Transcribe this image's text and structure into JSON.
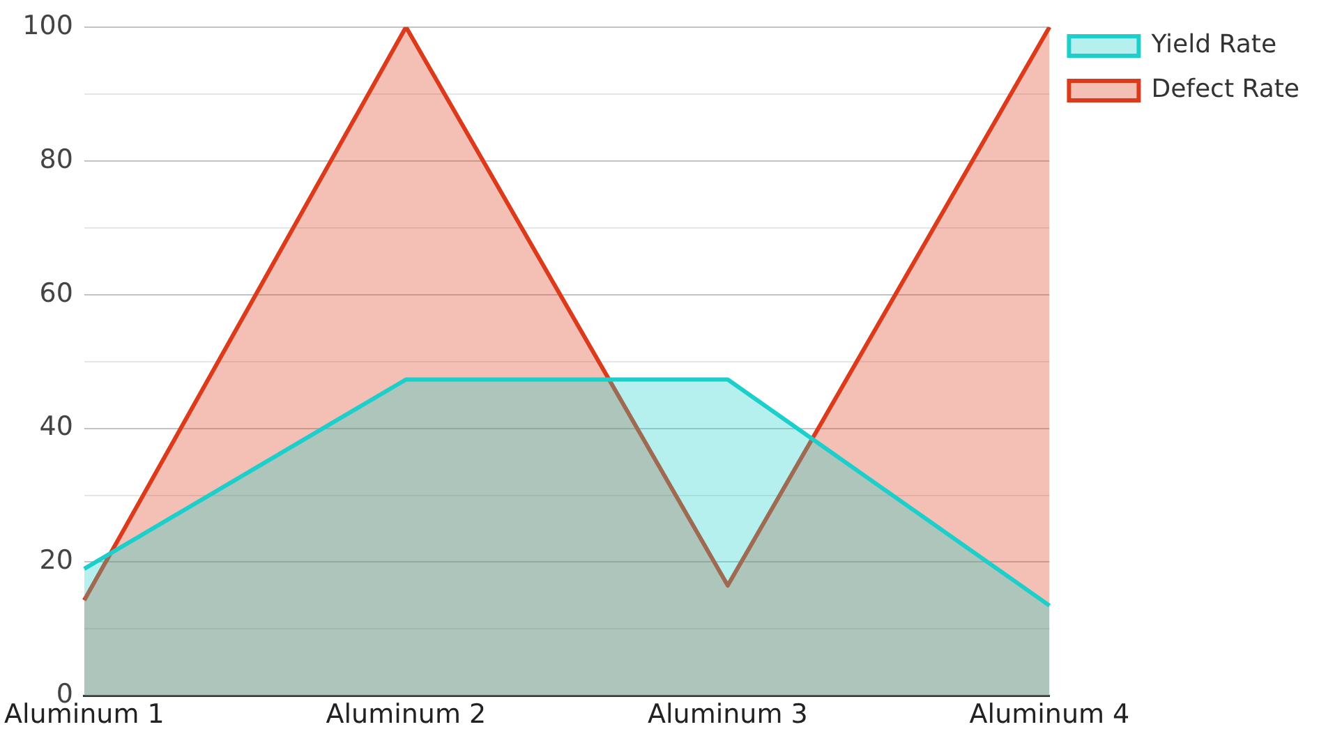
{
  "chart_data": {
    "type": "area",
    "categories": [
      "Aluminum 1",
      "Aluminum 2",
      "Aluminum 3",
      "Aluminum 4"
    ],
    "series": [
      {
        "name": "Yield Rate",
        "color": "#1ccfcb",
        "values": [
          19,
          47.3,
          47.3,
          13.5
        ]
      },
      {
        "name": "Defect Rate",
        "color": "#dc3a1a",
        "values": [
          14.3,
          100,
          16.5,
          100
        ]
      }
    ],
    "ylim": [
      0,
      100
    ],
    "yticks": [
      0,
      {
        "value": 10,
        "label": null
      },
      20,
      {
        "value": 30,
        "label": null
      },
      40,
      {
        "value": 50,
        "label": null
      },
      60,
      {
        "value": 70,
        "label": null
      },
      80,
      {
        "value": 90,
        "label": null
      },
      100
    ],
    "grid": "y",
    "legend": "top right",
    "marker": "none",
    "line_style": "solid"
  }
}
